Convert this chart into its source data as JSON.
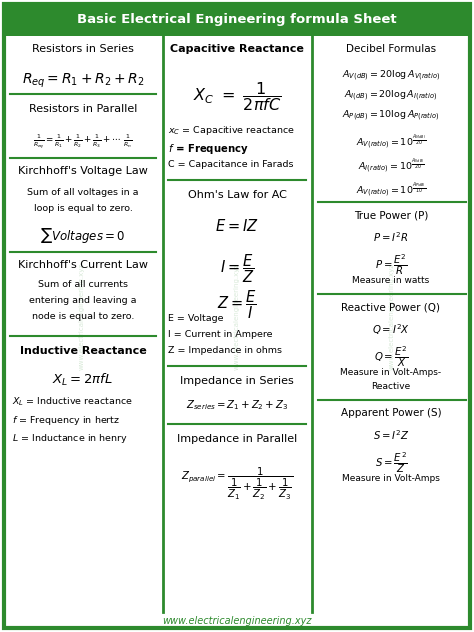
{
  "title": "Basic Electrical Engineering formula Sheet",
  "title_bg": "#2d8a2d",
  "title_color": "white",
  "bg_color": "white",
  "border_color": "#2d8a2d",
  "green": "#2d8a2d",
  "footer": "www.electricalengineering.xyz",
  "watermark": "www.electricalengineering.xyz",
  "col1_heading1": "Resistors in Series",
  "col1_formula1": "$R_{eq} = R_1+R_2+R_2$",
  "col1_heading2": "Resistors in Parallel",
  "col1_formula2": "$\\frac{1}{R_{eq}} = \\frac{1}{R_1} + \\frac{1}{R_2} + \\frac{1}{R_3} + \\cdots\\ \\frac{1}{R_n}$",
  "col1_heading3": "Kirchhoff's Voltage Law",
  "col1_text3a": "Sum of all voltages in a",
  "col1_text3b": "loop is equal to zero.",
  "col1_formula3": "$\\sum Voltages = 0$",
  "col1_heading4": "Kirchhoff's Current Law",
  "col1_text4a": "Sum of all currents",
  "col1_text4b": "entering and leaving a",
  "col1_text4c": "node is equal to zero.",
  "col1_heading5": "Inductive Reactance",
  "col1_formula5": "$X_L = 2\\pi fL$",
  "col1_text5a": "$X_L$ = Inductive reactance",
  "col1_text5b": "$f$ = Frequency in hertz",
  "col1_text5c": "$L$ = Inductance in henry",
  "col2_heading1": "Capacitive Reactance",
  "col2_formula1": "$X_C\\ =\\ \\dfrac{1}{2\\pi fC}$",
  "col2_text1a": "$x_C$ = Capacitive reactance",
  "col2_text1b": "$f$ = Frequency",
  "col2_text1c": "C = Capacitance in Farads",
  "col2_heading2": "Ohm's Law for AC",
  "col2_formula2a": "$E = IZ$",
  "col2_formula2b": "$I = \\dfrac{E}{Z}$",
  "col2_formula2c": "$Z = \\dfrac{E}{I}$",
  "col2_text2a": "E = Voltage",
  "col2_text2b": "I = Current in Ampere",
  "col2_text2c": "Z = Impedance in ohms",
  "col2_heading3": "Impedance in Series",
  "col2_formula3": "$Z_{series} = Z_1 + Z_2 + Z_3$",
  "col2_heading4": "Impedance in Parallel",
  "col2_formula4": "$Z_{paraliei} = \\dfrac{1}{\\dfrac{1}{Z_1} + \\dfrac{1}{Z_2} + \\dfrac{1}{Z_3}}$",
  "col3_heading1": "Decibel Formulas",
  "col3_f1": "$A_{V(dB)} = 20\\log A_{V(ratio)}$",
  "col3_f2": "$A_{I(dB)} = 20\\log A_{I(ratio)}$",
  "col3_f3": "$A_{P(dB)} = 10\\log A_{P(ratio)}$",
  "col3_f4": "$A_{V(ratio)} = 10^{\\frac{A_{V(dB)}}{20}}$",
  "col3_f5": "$A_{I(ratio)} = 10^{\\frac{A_{I(dB)}}{20}}$",
  "col3_f6": "$A_{V(ratio)} = 10^{\\frac{A_{P(dB)}}{10}}$",
  "col3_heading2": "True Power (P)",
  "col3_tp1": "$P = I^2R$",
  "col3_tp2": "$P = \\dfrac{E^2}{R}$",
  "col3_tp3": "Measure in watts",
  "col3_heading3": "Reactive Power (Q)",
  "col3_rp1": "$Q = I^2X$",
  "col3_rp2": "$Q = \\dfrac{E^2}{X}$",
  "col3_rp3": "Measure in Volt-Amps-",
  "col3_rp4": "Reactive",
  "col3_heading4": "Apparent Power (S)",
  "col3_ap1": "$S = I^2Z$",
  "col3_ap2": "$S = \\dfrac{E^2}{Z}$",
  "col3_ap3": "Measure in Volt-Amps"
}
